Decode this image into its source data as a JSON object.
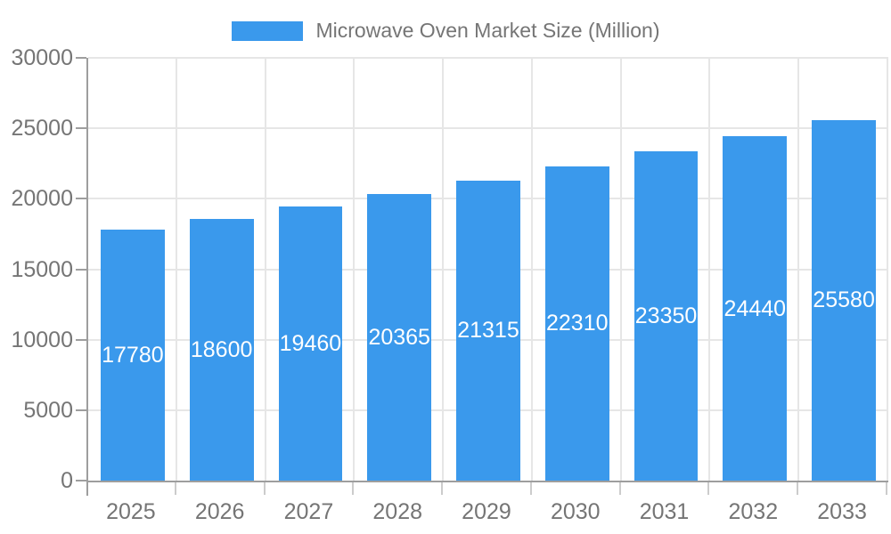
{
  "chart_data": {
    "type": "bar",
    "title": "Microwave Oven Market Size (Million)",
    "legend_position": "top",
    "categories": [
      "2025",
      "2026",
      "2027",
      "2028",
      "2029",
      "2030",
      "2031",
      "2032",
      "2033"
    ],
    "values": [
      17780,
      18600,
      19460,
      20365,
      21315,
      22310,
      23350,
      24440,
      25580
    ],
    "xlabel": "",
    "ylabel": "",
    "ylim": [
      0,
      30000
    ],
    "yticks": [
      0,
      5000,
      10000,
      15000,
      20000,
      25000,
      30000
    ],
    "grid": true,
    "value_label_position": "inside-center"
  },
  "colors": {
    "bar": "#3a99ec",
    "bar_label": "#ffffff",
    "axis_line": "#9e9e9e",
    "grid_line": "#e6e6e6",
    "tick_line": "#cccccc",
    "text": "#757575",
    "background": "#ffffff"
  }
}
